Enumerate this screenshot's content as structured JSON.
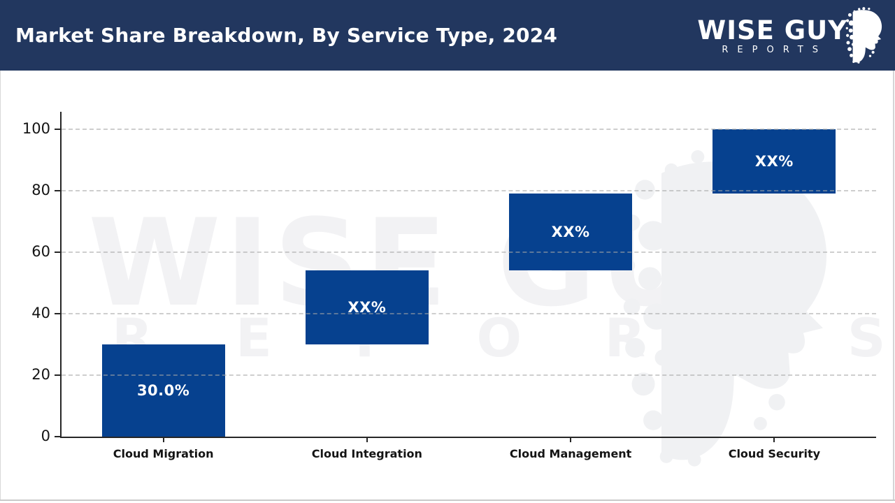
{
  "header": {
    "title": "Market Share Breakdown, By Service Type, 2024",
    "logo": {
      "line1": "WISE GUY",
      "line2": "REPORTS"
    }
  },
  "watermark": {
    "line1": "WISE GUY",
    "line2": "R E P O R T S"
  },
  "chart_data": {
    "type": "bar",
    "subtype": "waterfall",
    "title": "Market Share Breakdown, By Service Type, 2024",
    "xlabel": "",
    "ylabel": "",
    "categories": [
      "Cloud Migration",
      "Cloud Integration",
      "Cloud Management",
      "Cloud Security"
    ],
    "segments": [
      {
        "category": "Cloud Migration",
        "start": 0,
        "end": 30,
        "label": "30.0%"
      },
      {
        "category": "Cloud Integration",
        "start": 30,
        "end": 54,
        "label": "XX%"
      },
      {
        "category": "Cloud Management",
        "start": 54,
        "end": 79,
        "label": "XX%"
      },
      {
        "category": "Cloud Security",
        "start": 79,
        "end": 100,
        "label": "XX%"
      }
    ],
    "yticks": [
      0,
      20,
      40,
      60,
      80,
      100
    ],
    "ylim": [
      0,
      105
    ],
    "grid": "horizontal-dashed",
    "legend": "none",
    "bar_color": "#06418f",
    "axis_color": "#262626",
    "header_background": "#22375f"
  }
}
